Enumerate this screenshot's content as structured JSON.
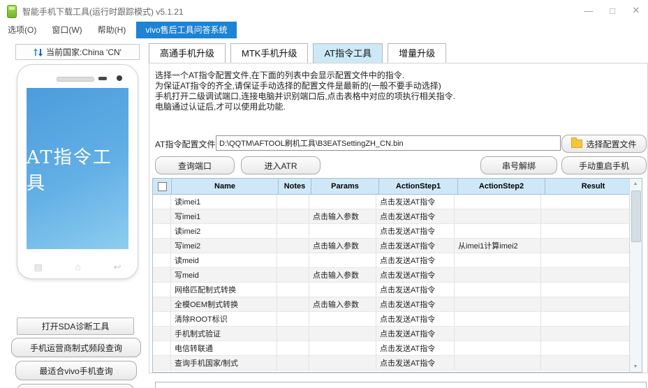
{
  "window": {
    "title": "智能手机下载工具(运行时跟踪模式)  v5.1.21",
    "minimize": "—",
    "maximize": "□",
    "close": "✕"
  },
  "menu": {
    "items": [
      "选项(O)",
      "窗口(W)",
      "帮助(H)"
    ],
    "vivo_button": "vivo售后工具问答系统"
  },
  "left": {
    "country": "当前国家:China 'CN'",
    "phone_screen_text": "AT指令工具",
    "nav_icons": {
      "menu": "▤",
      "home": "⌂",
      "back": "↩"
    },
    "buttons": [
      "打开SDA诊断工具",
      "手机运营商制式频段查询",
      "最适合vivo手机查询"
    ]
  },
  "tabs": [
    {
      "label": "高通手机升级",
      "active": false
    },
    {
      "label": "MTK手机升级",
      "active": false
    },
    {
      "label": "AT指令工具",
      "active": true
    },
    {
      "label": "增量升级",
      "active": false
    }
  ],
  "panel": {
    "description_lines": [
      "选择一个AT指令配置文件,在下面的列表中会显示配置文件中的指令.",
      "为保证AT指令的齐全,请保证手动选择的配置文件是最新的(一般不要手动选择)",
      "手机打开二级调试端口,连接电脑并识别端口后,点击表格中对应的项执行相关指令.",
      "电脑通过认证后,才可以使用此功能."
    ],
    "config_label": "AT指令配置文件",
    "config_path": "D:\\QQTM\\AFTOOL刷机工具\\B3EATSettingZH_CN.bin",
    "choose_file_button": "选择配置文件",
    "query_port_button": "查询端口",
    "enter_atr_button": "进入ATR",
    "unbind_button": "串号解绑",
    "restart_button": "手动重启手机"
  },
  "table": {
    "headers": [
      "Name",
      "Notes",
      "Params",
      "ActionStep1",
      "ActionStep2",
      "Result"
    ],
    "rows": [
      {
        "name": "读imei1",
        "notes": "",
        "params": "",
        "step1": "点击发送AT指令",
        "step2": "",
        "result": ""
      },
      {
        "name": "写imei1",
        "notes": "",
        "params": "点击输入参数",
        "step1": "点击发送AT指令",
        "step2": "",
        "result": ""
      },
      {
        "name": "读imei2",
        "notes": "",
        "params": "",
        "step1": "点击发送AT指令",
        "step2": "",
        "result": ""
      },
      {
        "name": "写imei2",
        "notes": "",
        "params": "点击输入参数",
        "step1": "点击发送AT指令",
        "step2": "从imei1计算imei2",
        "result": ""
      },
      {
        "name": "读meid",
        "notes": "",
        "params": "",
        "step1": "点击发送AT指令",
        "step2": "",
        "result": ""
      },
      {
        "name": "写meid",
        "notes": "",
        "params": "点击输入参数",
        "step1": "点击发送AT指令",
        "step2": "",
        "result": ""
      },
      {
        "name": "网络匹配制式转换",
        "notes": "",
        "params": "",
        "step1": "点击发送AT指令",
        "step2": "",
        "result": ""
      },
      {
        "name": "全模OEM制式转换",
        "notes": "",
        "params": "点击输入参数",
        "step1": "点击发送AT指令",
        "step2": "",
        "result": ""
      },
      {
        "name": "清除ROOT标识",
        "notes": "",
        "params": "",
        "step1": "点击发送AT指令",
        "step2": "",
        "result": ""
      },
      {
        "name": "手机制式验证",
        "notes": "",
        "params": "",
        "step1": "点击发送AT指令",
        "step2": "",
        "result": ""
      },
      {
        "name": "电信转联通",
        "notes": "",
        "params": "",
        "step1": "点击发送AT指令",
        "step2": "",
        "result": ""
      },
      {
        "name": "查询手机国家/制式",
        "notes": "",
        "params": "",
        "step1": "点击发送AT指令",
        "step2": "",
        "result": ""
      }
    ],
    "scroll_up_glyph": "▲",
    "scroll_down_glyph": "▼"
  },
  "colors": {
    "accent_blue": "#1d83d4",
    "tab_active_bg": "#cde9f7",
    "table_header_bg": "#cfe8f7",
    "phone_screen_top": "#4c9cdc",
    "phone_screen_bottom": "#8ecdf0"
  }
}
